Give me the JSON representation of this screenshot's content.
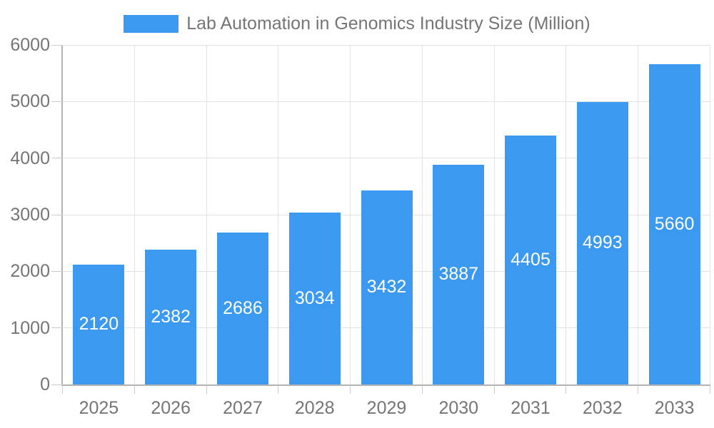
{
  "legend": {
    "label": "Lab Automation in Genomics Industry Size (Million)"
  },
  "colors": {
    "bar": "#3B99F0",
    "text": "#757575",
    "grid": "#e3e3e3",
    "axis": "#b3b3b3",
    "tick": "#cccccc",
    "bar_label": "#ffffff",
    "background": "#ffffff"
  },
  "chart_data": {
    "type": "bar",
    "title": "Lab Automation in Genomics Industry Size (Million)",
    "categories": [
      "2025",
      "2026",
      "2027",
      "2028",
      "2029",
      "2030",
      "2031",
      "2032",
      "2033"
    ],
    "series": [
      {
        "name": "Lab Automation in Genomics Industry Size (Million)",
        "values": [
          2120,
          2382,
          2686,
          3034,
          3432,
          3887,
          4405,
          4993,
          5660
        ]
      }
    ],
    "bar_value_labels": [
      2120,
      2382,
      2686,
      3034,
      3432,
      3887,
      4405,
      4993,
      5660
    ],
    "xlabel": "",
    "ylabel": "",
    "ylim": [
      0,
      6000
    ],
    "yticks": [
      0,
      1000,
      2000,
      3000,
      4000,
      5000,
      6000
    ],
    "grid": true,
    "legend_position": "top"
  }
}
